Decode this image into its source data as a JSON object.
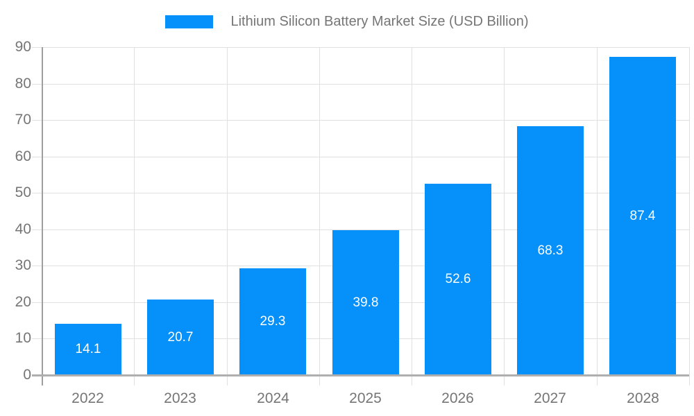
{
  "chart_data": {
    "type": "bar",
    "title": "Lithium Silicon Battery Market Size (USD Billion)",
    "categories": [
      "2022",
      "2023",
      "2024",
      "2025",
      "2026",
      "2027",
      "2028"
    ],
    "values": [
      14.1,
      20.7,
      29.3,
      39.8,
      52.6,
      68.3,
      87.4
    ],
    "xlabel": "",
    "ylabel": "",
    "ylim": [
      0,
      90
    ],
    "yticks": [
      0,
      10,
      20,
      30,
      40,
      50,
      60,
      70,
      80,
      90
    ],
    "grid": "on",
    "legend_position": "top-center",
    "value_label_position": "inside-center",
    "value_label_format": "0.0"
  },
  "theme": {
    "background": "#ffffff",
    "bar_color": "#0690fa",
    "grid_color": "#e0e0e0",
    "axis_line_color": "#9e9e9e",
    "baseline_color": "#aeaeae",
    "tick_label_color": "#757575",
    "legend_text_color": "#757575",
    "value_label_color": "#ffffff"
  }
}
